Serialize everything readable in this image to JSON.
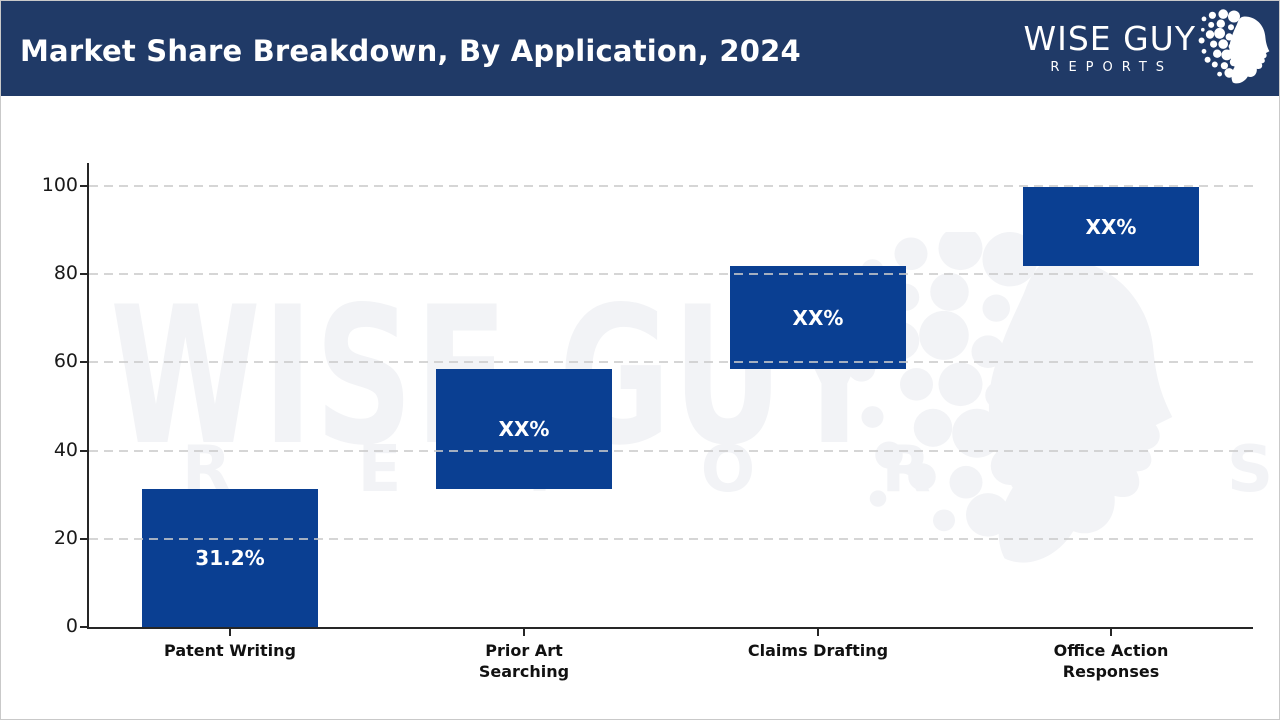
{
  "header": {
    "title": "Market Share Breakdown, By Application, 2024",
    "logo": {
      "name": "WISE GUY",
      "sub": "REPORTS"
    }
  },
  "watermark": {
    "name": "WISE GUY",
    "sub": "R E P O R T S"
  },
  "chart_data": {
    "type": "bar",
    "subtype": "waterfall",
    "title": "Market Share Breakdown, By Application, 2024",
    "categories": [
      "Patent Writing",
      "Prior Art\nSearching",
      "Claims Drafting",
      "Office Action\nResponses"
    ],
    "segments": [
      {
        "category": "Patent Writing",
        "start": 0,
        "end": 31.2,
        "label": "31.2%"
      },
      {
        "category": "Prior Art Searching",
        "start": 31.2,
        "end": 58.5,
        "label": "XX%"
      },
      {
        "category": "Claims Drafting",
        "start": 58.5,
        "end": 81.8,
        "label": "XX%"
      },
      {
        "category": "Office Action Responses",
        "start": 81.8,
        "end": 99.8,
        "label": "XX%"
      }
    ],
    "yticks": [
      0,
      20,
      40,
      60,
      80,
      100
    ],
    "ylim": [
      0,
      105
    ],
    "xlabel": "",
    "ylabel": "",
    "grid": "horizontal-dashed",
    "legend": "none",
    "colors": {
      "bar": "#0a3f92",
      "header_bar": "#203a67",
      "gridline": "#cbcbcb",
      "axis": "#262626",
      "watermark": "#f2f3f6",
      "bar_label_text": "#ffffff"
    }
  }
}
